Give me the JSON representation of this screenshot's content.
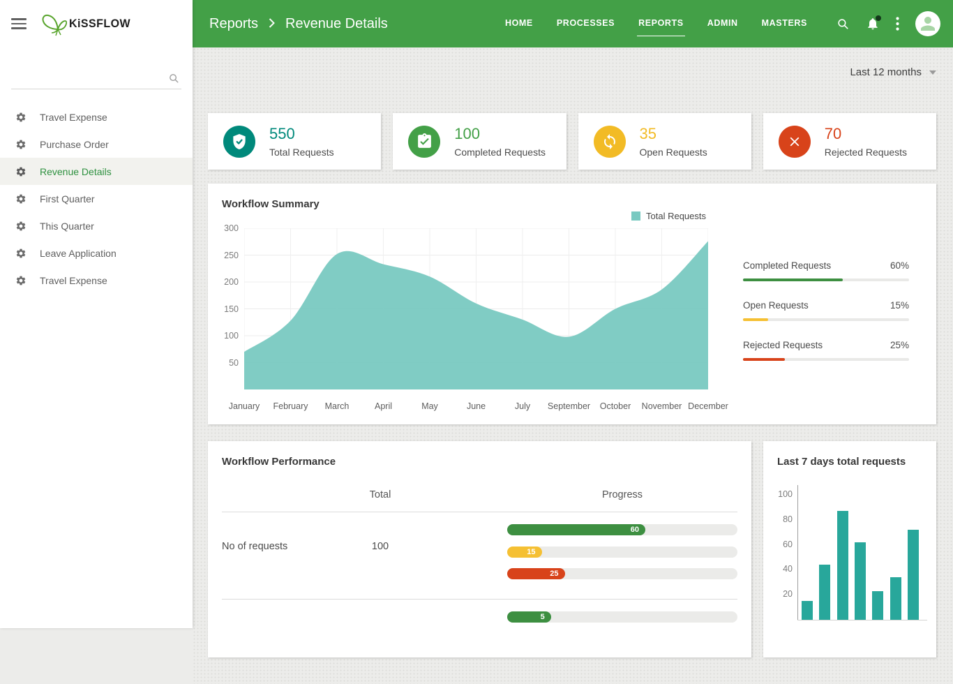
{
  "sidebar": {
    "logo_text": "KiSSFLOW",
    "search": {
      "value": "",
      "placeholder": ""
    },
    "items": [
      {
        "label": "Travel Expense",
        "active": false
      },
      {
        "label": "Purchase Order",
        "active": false
      },
      {
        "label": "Revenue Details",
        "active": true
      },
      {
        "label": "First Quarter",
        "active": false
      },
      {
        "label": "This Quarter",
        "active": false
      },
      {
        "label": "Leave Application",
        "active": false
      },
      {
        "label": "Travel Expense",
        "active": false
      }
    ]
  },
  "navbar": {
    "breadcrumb": {
      "section": "Reports",
      "page": "Revenue Details"
    },
    "links": [
      {
        "label": "HOME",
        "active": false
      },
      {
        "label": "PROCESSES",
        "active": false
      },
      {
        "label": "REPORTS",
        "active": true
      },
      {
        "label": "ADMIN",
        "active": false
      },
      {
        "label": "MASTERS",
        "active": false
      }
    ]
  },
  "filter": {
    "label": "Last 12 months"
  },
  "stat_cards": [
    {
      "value": "550",
      "label": "Total Requests",
      "icon": "shield-check-icon",
      "color": "#00897b"
    },
    {
      "value": "100",
      "label": "Completed Requests",
      "icon": "clipboard-check-icon",
      "color": "#43a047"
    },
    {
      "value": "35",
      "label": "Open Requests",
      "icon": "sync-icon",
      "color": "#f2bb25"
    },
    {
      "value": "70",
      "label": "Rejected Requests",
      "icon": "close-icon",
      "color": "#d8431a"
    }
  ],
  "workflow_summary": {
    "title": "Workflow Summary",
    "legend": "Total Requests",
    "area_color": "#79c9c1",
    "chart_data": {
      "type": "area",
      "x": [
        "January",
        "February",
        "March",
        "April",
        "May",
        "June",
        "July",
        "September",
        "October",
        "November",
        "December"
      ],
      "values": [
        70,
        128,
        252,
        233,
        210,
        160,
        130,
        98,
        150,
        186,
        276
      ],
      "y_ticks": [
        300,
        250,
        200,
        150,
        100,
        50
      ],
      "ylim": [
        0,
        300
      ],
      "grid": true,
      "legend_position": "top-right"
    },
    "breakdown": [
      {
        "label": "Completed Requests",
        "pct_label": "60%",
        "pct": 60,
        "color": "#3d8f41"
      },
      {
        "label": "Open Requests",
        "pct_label": "15%",
        "pct": 15,
        "color": "#f5c033"
      },
      {
        "label": "Rejected Requests",
        "pct_label": "25%",
        "pct": 25,
        "color": "#d8431a"
      }
    ]
  },
  "workflow_performance": {
    "title": "Workflow Performance",
    "columns": {
      "total": "Total",
      "progress": "Progress"
    },
    "rows": [
      {
        "label": "No of requests",
        "total": "100",
        "bars": [
          {
            "value": "60",
            "fill_pct": 60,
            "color": "#3d8f41"
          },
          {
            "value": "15",
            "fill_pct": 15,
            "color": "#f5c033"
          },
          {
            "value": "25",
            "fill_pct": 25,
            "color": "#d8431a"
          }
        ]
      },
      {
        "label": "",
        "total": "",
        "bars": [
          {
            "value": "5",
            "fill_pct": 19,
            "color": "#3d8f41"
          }
        ]
      }
    ]
  },
  "last7": {
    "title": "Last 7 days total requests",
    "chart_data": {
      "type": "bar",
      "values": [
        15,
        44,
        87,
        62,
        23,
        34,
        72
      ],
      "y_ticks": [
        100,
        80,
        60,
        40,
        20
      ],
      "ylim": [
        0,
        100
      ],
      "color": "#28a79b"
    }
  }
}
